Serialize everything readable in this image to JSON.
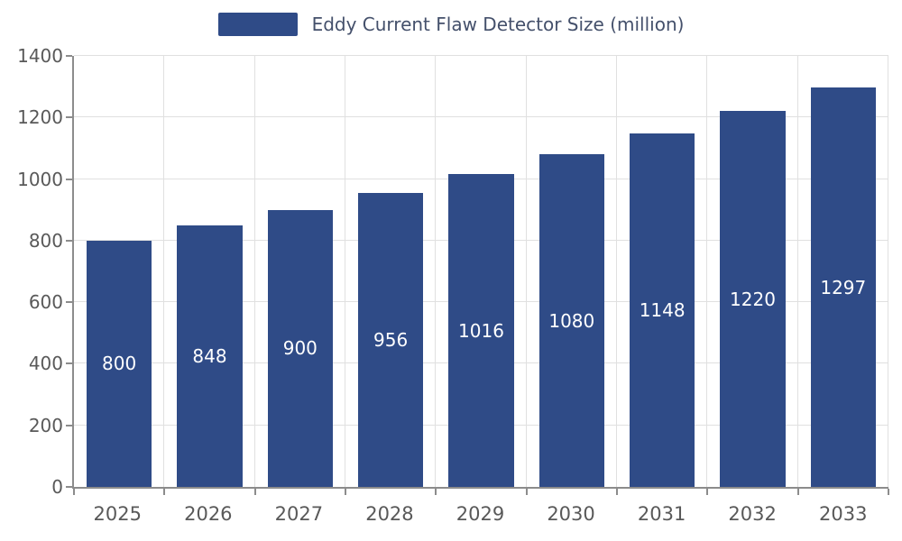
{
  "legend": {
    "label": "Eddy Current Flaw Detector Size (million)"
  },
  "colors": {
    "bar": "#2f4b87",
    "grid": "#e0e0e0",
    "axis": "#8c8c8c",
    "tick_text": "#595959",
    "legend_text": "#44506b",
    "value_label": "#ffffff"
  },
  "chart_data": {
    "type": "bar",
    "title": "Eddy Current Flaw Detector Size (million)",
    "categories": [
      "2025",
      "2026",
      "2027",
      "2028",
      "2029",
      "2030",
      "2031",
      "2032",
      "2033"
    ],
    "values": [
      800,
      848,
      900,
      956,
      1016,
      1080,
      1148,
      1220,
      1297
    ],
    "xlabel": "",
    "ylabel": "",
    "ylim": [
      0,
      1400
    ],
    "ytick_step": 200,
    "yticks": [
      0,
      200,
      400,
      600,
      800,
      1000,
      1200,
      1400
    ],
    "grid": true,
    "legend_position": "top-center",
    "value_labels": "inside-bar-middle",
    "bar_width_fraction": 0.72
  }
}
